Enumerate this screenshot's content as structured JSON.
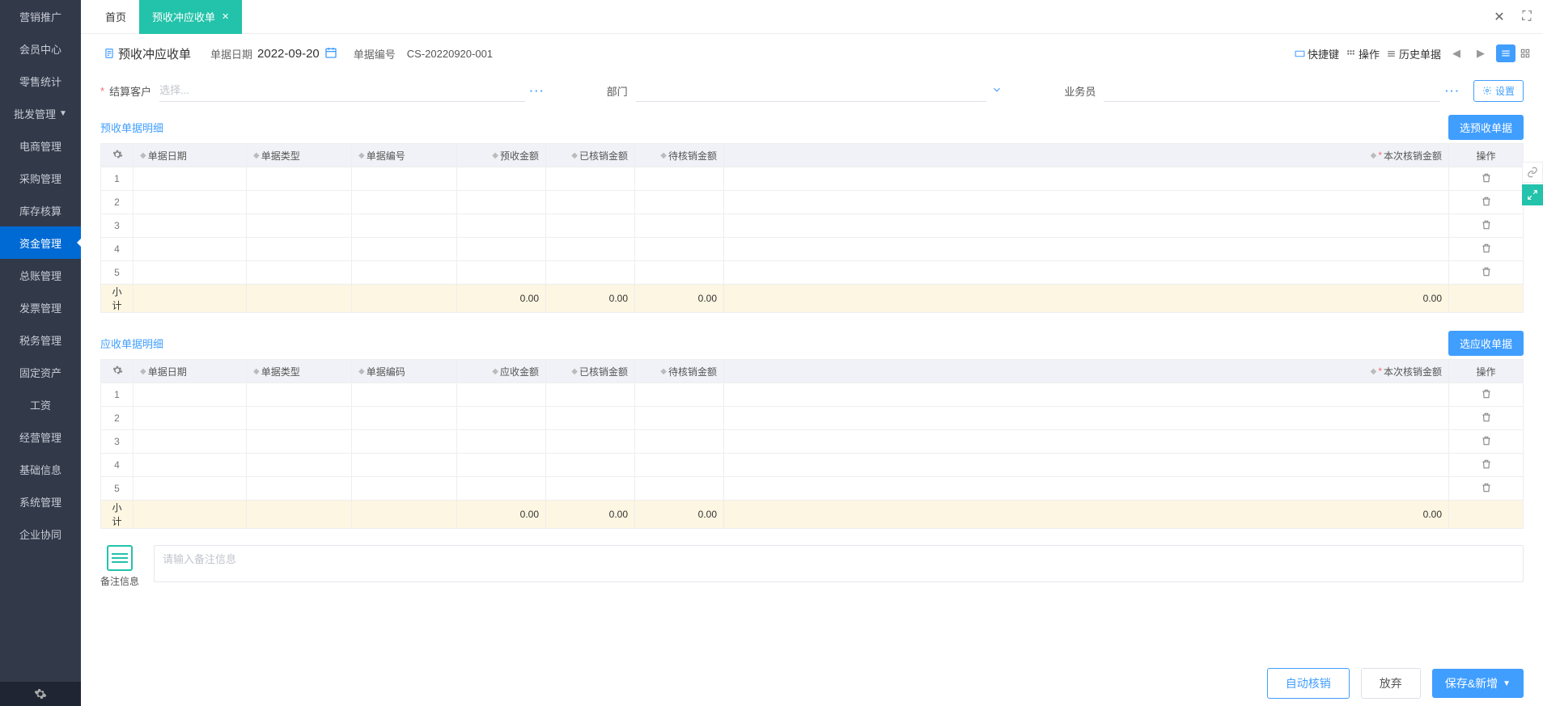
{
  "sidebar": {
    "items": [
      {
        "label": "营销推广",
        "id": "marketing"
      },
      {
        "label": "会员中心",
        "id": "member"
      },
      {
        "label": "零售统计",
        "id": "retail-stats"
      },
      {
        "label": "批发管理",
        "id": "wholesale",
        "caret": true
      },
      {
        "label": "电商管理",
        "id": "ecommerce"
      },
      {
        "label": "采购管理",
        "id": "purchase"
      },
      {
        "label": "库存核算",
        "id": "inventory"
      },
      {
        "label": "资金管理",
        "id": "fund",
        "active": true
      },
      {
        "label": "总账管理",
        "id": "ledger"
      },
      {
        "label": "发票管理",
        "id": "invoice"
      },
      {
        "label": "税务管理",
        "id": "tax"
      },
      {
        "label": "固定资产",
        "id": "asset"
      },
      {
        "label": "工资",
        "id": "salary"
      },
      {
        "label": "经营管理",
        "id": "operation"
      },
      {
        "label": "基础信息",
        "id": "baseinfo"
      },
      {
        "label": "系统管理",
        "id": "system"
      },
      {
        "label": "企业协同",
        "id": "collab"
      }
    ]
  },
  "tabs": {
    "home_label": "首页",
    "active_label": "预收冲应收单"
  },
  "header": {
    "title": "预收冲应收单",
    "date_label": "单据日期",
    "date_value": "2022-09-20",
    "code_label": "单据编号",
    "code_value": "CS-20220920-001",
    "shortcut_label": "快捷键",
    "ops_label": "操作",
    "history_label": "历史单据"
  },
  "form": {
    "customer_label": "结算客户",
    "customer_placeholder": "选择...",
    "dept_label": "部门",
    "salesman_label": "业务员",
    "settings_label": "设置"
  },
  "section1": {
    "title": "预收单据明细",
    "select_btn": "选预收单据",
    "columns": {
      "date": "单据日期",
      "type": "单据类型",
      "code": "单据编号",
      "prepay": "预收金额",
      "written": "已核销金额",
      "towrite": "待核销金额",
      "thiswrite": "本次核销金额",
      "action": "操作"
    },
    "subtotal_label": "小计",
    "sub_prepay": "0.00",
    "sub_written": "0.00",
    "sub_towrite": "0.00",
    "sub_thiswrite": "0.00"
  },
  "section2": {
    "title": "应收单据明细",
    "select_btn": "选应收单据",
    "columns": {
      "date": "单据日期",
      "type": "单据类型",
      "code": "单据编码",
      "receivable": "应收金额",
      "written": "已核销金额",
      "towrite": "待核销金额",
      "thiswrite": "本次核销金额",
      "action": "操作"
    },
    "subtotal_label": "小计",
    "sub_recv": "0.00",
    "sub_written": "0.00",
    "sub_towrite": "0.00",
    "sub_thiswrite": "0.00"
  },
  "remark": {
    "label": "备注信息",
    "placeholder": "请输入备注信息"
  },
  "footer": {
    "auto_btn": "自动核销",
    "discard_btn": "放弃",
    "save_btn": "保存&新增"
  }
}
